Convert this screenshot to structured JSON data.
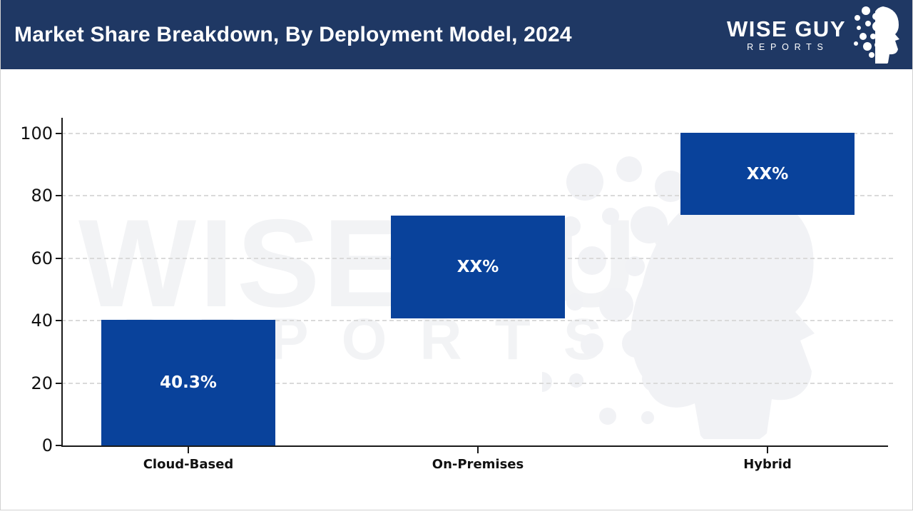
{
  "header": {
    "title": "Market Share Breakdown, By Deployment Model, 2024",
    "logo": {
      "line1": "WISE GUY",
      "line2": "REPORTS"
    }
  },
  "watermark": {
    "line1": "WISE GUY",
    "line2": "REPORTS"
  },
  "colors": {
    "header_bg": "#1F3864",
    "bar": "#09429B",
    "grid": "#DADADA",
    "axis": "#1A1A1A",
    "bar_label_text": "#FFFFFF",
    "watermark": "#F2F3F5"
  },
  "chart_data": {
    "type": "bar",
    "variant": "cumulative-floating-bars",
    "title": "Market Share Breakdown, By Deployment Model, 2024",
    "categories": [
      "Cloud-Based",
      "On-Premises",
      "Hybrid"
    ],
    "segments": [
      {
        "category": "Cloud-Based",
        "start": 0,
        "end": 40.3,
        "value": 40.3,
        "label": "40.3%"
      },
      {
        "category": "On-Premises",
        "start": 40.7,
        "end": 73.7,
        "value": 33.0,
        "label": "XX%"
      },
      {
        "category": "Hybrid",
        "start": 73.9,
        "end": 100.2,
        "value": 26.3,
        "label": "XX%"
      }
    ],
    "xlabel": "",
    "ylabel": "",
    "yticks": [
      0,
      20,
      40,
      60,
      80,
      100
    ],
    "ylim": [
      0,
      105
    ],
    "grid": "horizontal-dashed",
    "legend": "none",
    "bar_color": "#09429B"
  }
}
